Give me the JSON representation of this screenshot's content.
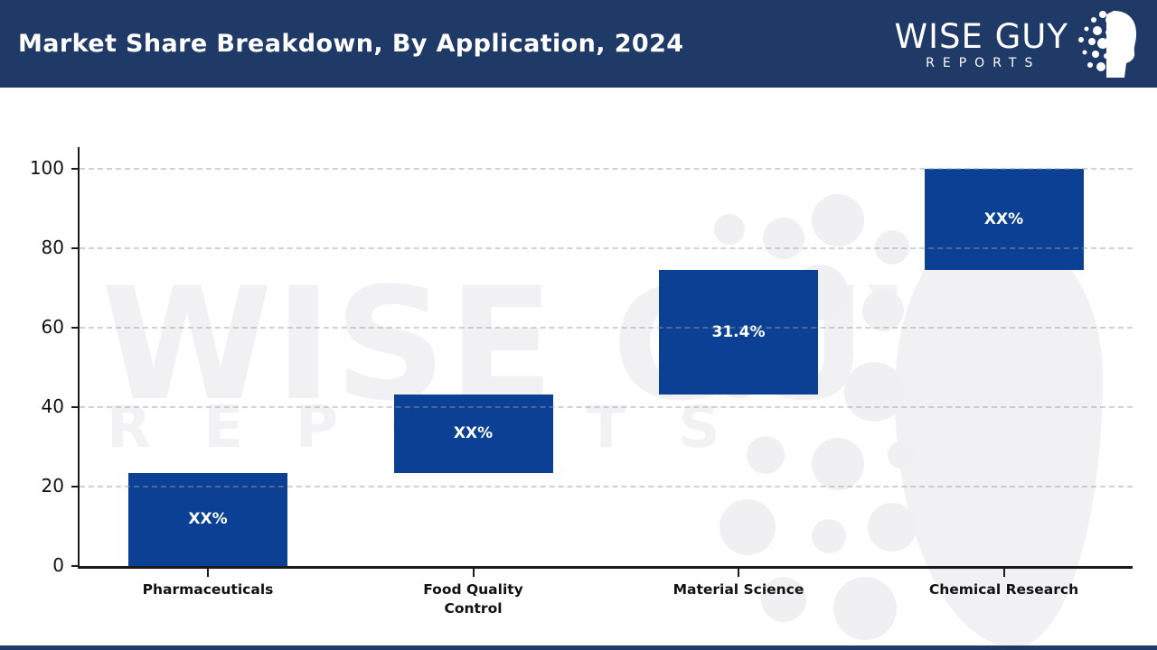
{
  "header": {
    "title": "Market Share Breakdown, By Application, 2024",
    "background_color": "#203a68",
    "logo_line1": "WISE GUY",
    "logo_line2": "REPORTS"
  },
  "watermark": {
    "line1": "WISE GUY",
    "line2": "REPORTS"
  },
  "chart_data": {
    "type": "bar",
    "subtype": "floating-waterfall",
    "title": "Market Share Breakdown, By Application, 2024",
    "categories": [
      "Pharmaceuticals",
      "Food Quality\nControl",
      "Material Science",
      "Chemical Research"
    ],
    "segments": [
      {
        "category": "Pharmaceuticals",
        "start": 0,
        "end": 23.5,
        "label": "XX%"
      },
      {
        "category": "Food Quality Control",
        "start": 23.5,
        "end": 43.2,
        "label": "XX%"
      },
      {
        "category": "Material Science",
        "start": 43.2,
        "end": 74.6,
        "label": "31.4%"
      },
      {
        "category": "Chemical Research",
        "start": 74.6,
        "end": 100,
        "label": "XX%"
      }
    ],
    "xlabel": "",
    "ylabel": "",
    "yticks": [
      0,
      20,
      40,
      60,
      80,
      100
    ],
    "ylim": [
      0,
      104
    ],
    "grid": {
      "horizontal": true,
      "style": "dashed"
    },
    "legend_position": "none",
    "bar_color": "#0b4094",
    "bar_label_color": "#ffffff",
    "axis_color": "#1a1a1a"
  },
  "footer": {
    "strip_color": "#203a68"
  }
}
